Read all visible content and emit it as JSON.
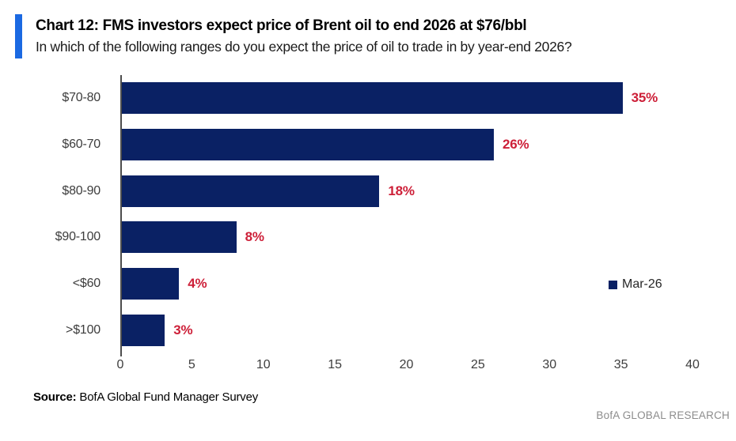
{
  "header": {
    "title": "Chart 12: FMS investors expect price of Brent oil to end 2026 at $76/bbl",
    "subtitle": "In which of the following ranges do you expect the price of oil to trade in by year-end 2026?",
    "accent_color": "#1b69e2"
  },
  "chart_data": {
    "type": "bar",
    "orientation": "horizontal",
    "title": "Chart 12: FMS investors expect price of Brent oil to end 2026 at $76/bbl",
    "subtitle": "In which of the following ranges do you expect the price of oil to trade in by year-end 2026?",
    "categories": [
      "$70-80",
      "$60-70",
      "$80-90",
      "$90-100",
      "<$60",
      ">$100"
    ],
    "series": [
      {
        "name": "Mar-26",
        "values": [
          35,
          26,
          18,
          8,
          4,
          3
        ]
      }
    ],
    "value_labels": [
      "35%",
      "26%",
      "18%",
      "8%",
      "4%",
      "3%"
    ],
    "x_ticks": [
      "0",
      "5",
      "10",
      "15",
      "20",
      "25",
      "30",
      "35",
      "40"
    ],
    "xlim": [
      0,
      40
    ],
    "grid": false,
    "legend_position": "right",
    "bar_color": "#0a2164",
    "value_label_color": "#cd1f38",
    "axis_color": "#4d4d4d",
    "tick_label_color": "#3d3d3d"
  },
  "footer": {
    "source_label": "Source:",
    "source_text": " BofA Global Fund Manager Survey",
    "branding": "BofA GLOBAL RESEARCH"
  }
}
